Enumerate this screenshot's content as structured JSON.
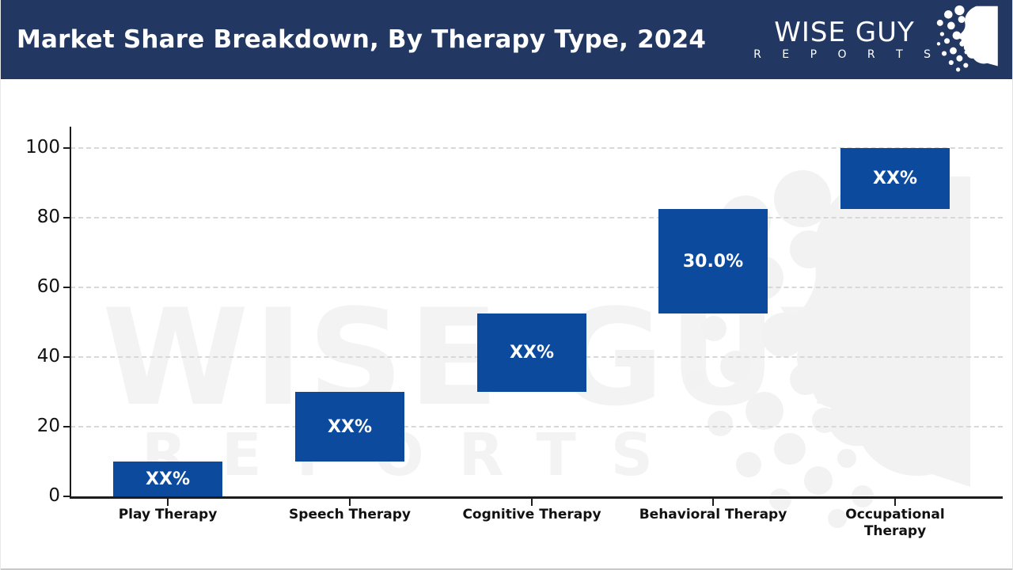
{
  "header": {
    "title": "Market Share Breakdown, By Therapy Type, 2024",
    "bg_color": "#223863",
    "logo": {
      "name": "WISE GUY",
      "subname": "R E P O R T S"
    }
  },
  "watermark": {
    "line1": "WISE GUY",
    "line2": "REPORTS"
  },
  "chart_data": {
    "type": "bar",
    "variant": "waterfall",
    "title": "Market Share Breakdown, By Therapy Type, 2024",
    "categories": [
      "Play Therapy",
      "Speech Therapy",
      "Cognitive Therapy",
      "Behavioral Therapy",
      "Occupational Therapy"
    ],
    "tick_lines": [
      [
        "Play Therapy"
      ],
      [
        "Speech Therapy"
      ],
      [
        "Cognitive Therapy"
      ],
      [
        "Behavioral Therapy"
      ],
      [
        "Occupational",
        "Therapy"
      ]
    ],
    "series": [
      {
        "name": "Market share (%)",
        "segments": [
          {
            "category": "Play Therapy",
            "base": 0,
            "top": 10,
            "label": "XX%"
          },
          {
            "category": "Speech Therapy",
            "base": 10,
            "top": 30,
            "label": "XX%"
          },
          {
            "category": "Cognitive Therapy",
            "base": 30,
            "top": 52.5,
            "label": "XX%"
          },
          {
            "category": "Behavioral Therapy",
            "base": 52.5,
            "top": 82.5,
            "label": "30.0%"
          },
          {
            "category": "Occupational Therapy",
            "base": 82.5,
            "top": 100,
            "label": "XX%"
          }
        ]
      }
    ],
    "yticks": [
      0,
      20,
      40,
      60,
      80,
      100
    ],
    "ylim": [
      0,
      106
    ],
    "xlabel": "",
    "ylabel": "",
    "grid": "horizontal-dashed",
    "legend": false,
    "bar_color": "#0c4a9e",
    "bar_label_color": "#ffffff"
  }
}
